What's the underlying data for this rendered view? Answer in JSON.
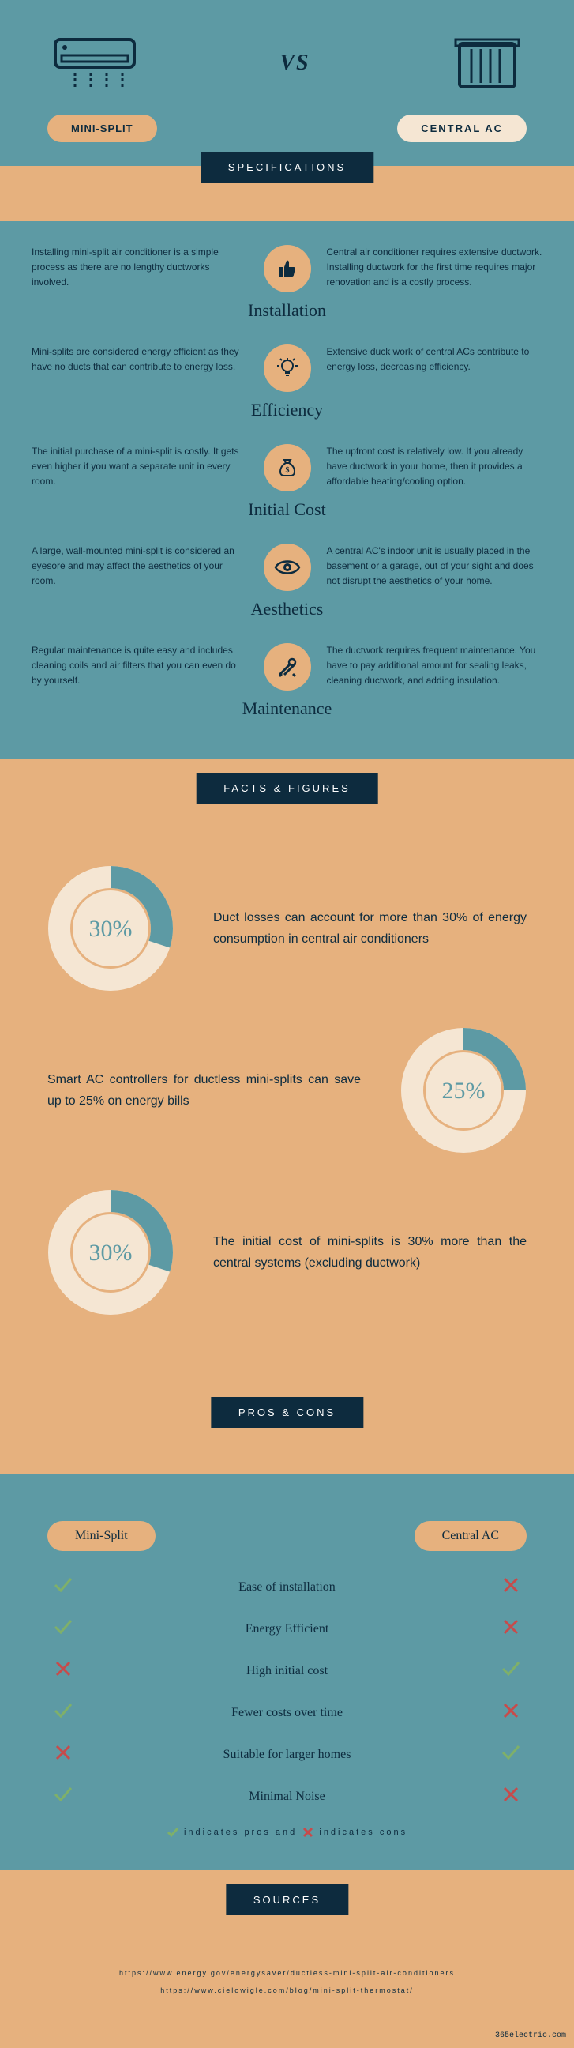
{
  "header": {
    "vs": "VS",
    "left_label": "MINI-SPLIT",
    "right_label": "CENTRAL  AC"
  },
  "sections": {
    "specifications": "SPECIFICATIONS",
    "facts": "FACTS & FIGURES",
    "procon": "PROS & CONS",
    "sources": "SOURCES"
  },
  "specs": [
    {
      "left": "Installing mini-split air conditioner is a simple process as there are no lengthy ductworks involved.",
      "right": "Central air conditioner requires extensive ductwork.  Installing ductwork for the first time requires major renovation and is a costly process.",
      "title": "Installation",
      "icon": "thumbs-up"
    },
    {
      "left": "Mini-splits are considered energy efficient as they have no ducts that can contribute to energy loss.",
      "right": "Extensive duck work of central ACs contribute to energy loss, decreasing efficiency.",
      "title": "Efficiency",
      "icon": "lightbulb"
    },
    {
      "left": "The initial purchase of a mini-split is costly. It gets even higher if you want a separate unit in every room.",
      "right": "The upfront cost is relatively low. If you already have ductwork in your home, then it provides a affordable heating/cooling option.",
      "title": "Initial Cost",
      "icon": "money-bag"
    },
    {
      "left": "A large, wall-mounted mini-split is considered an eyesore and  may affect the aesthetics of your room.",
      "right": " A central AC's indoor unit is usually placed in the basement or a garage, out of your sight and does not disrupt the aesthetics of your home.",
      "title": "Aesthetics",
      "icon": "eye"
    },
    {
      "left": "Regular maintenance is quite easy and includes cleaning coils and air filters that you can even do by yourself.",
      "right": "The ductwork  requires frequent maintenance. You have to pay additional amount for sealing leaks, cleaning ductwork, and adding  insulation.",
      "title": "Maintenance",
      "icon": "tools"
    }
  ],
  "facts": [
    {
      "pct": "30%",
      "text": "Duct losses can account for more than 30% of energy consumption in central air conditioners",
      "side": "left",
      "arc_pct": 30
    },
    {
      "pct": "25%",
      "text": "Smart AC controllers for ductless mini-splits can save up to 25%  on energy bills",
      "side": "right",
      "arc_pct": 25
    },
    {
      "pct": "30%",
      "text": "The initial cost of mini-splits is 30% more than the central systems (excluding ductwork)",
      "side": "left",
      "arc_pct": 30
    }
  ],
  "procon": {
    "left_header": "Mini-Split",
    "right_header": "Central AC",
    "rows": [
      {
        "label": "Ease of installation",
        "left": "check",
        "right": "cross"
      },
      {
        "label": "Energy Efficient",
        "left": "check",
        "right": "cross"
      },
      {
        "label": "High initial cost",
        "left": "cross",
        "right": "check"
      },
      {
        "label": "Fewer costs over time",
        "left": "check",
        "right": "cross"
      },
      {
        "label": "Suitable for larger homes",
        "left": "cross",
        "right": "check"
      },
      {
        "label": "Minimal Noise",
        "left": "check",
        "right": "cross"
      }
    ],
    "legend_pros": "indicates pros and",
    "legend_cons": "indicates cons"
  },
  "sources": [
    "https://www.energy.gov/energysaver/ductless-mini-split-air-conditioners",
    "https://www.cielowigle.com/blog/mini-split-thermostat/"
  ],
  "watermark": "365electric.com",
  "colors": {
    "teal": "#5d9aa4",
    "orange": "#e6b17e",
    "cream": "#f5e6d3",
    "dark": "#0d2b3e",
    "green": "#7fb069",
    "red": "#c74b4b"
  }
}
